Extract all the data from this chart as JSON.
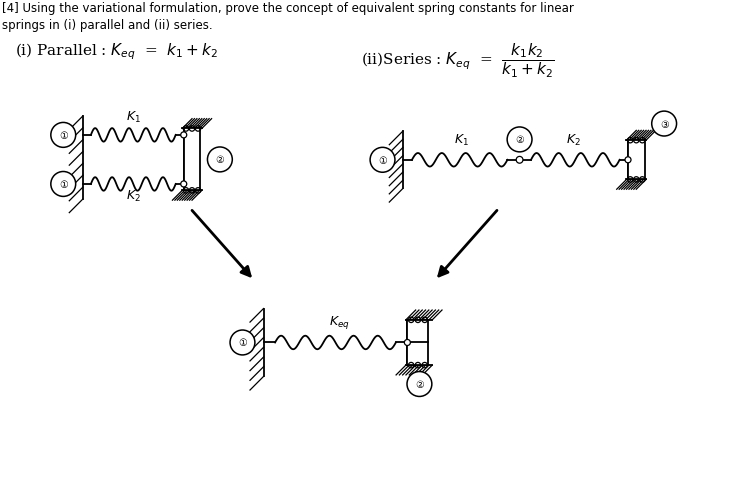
{
  "background_color": "#ffffff",
  "line_color": "#000000",
  "figsize": [
    7.53,
    5.02
  ],
  "dpi": 100,
  "xlim": [
    0,
    10
  ],
  "ylim": [
    0,
    6.65
  ]
}
